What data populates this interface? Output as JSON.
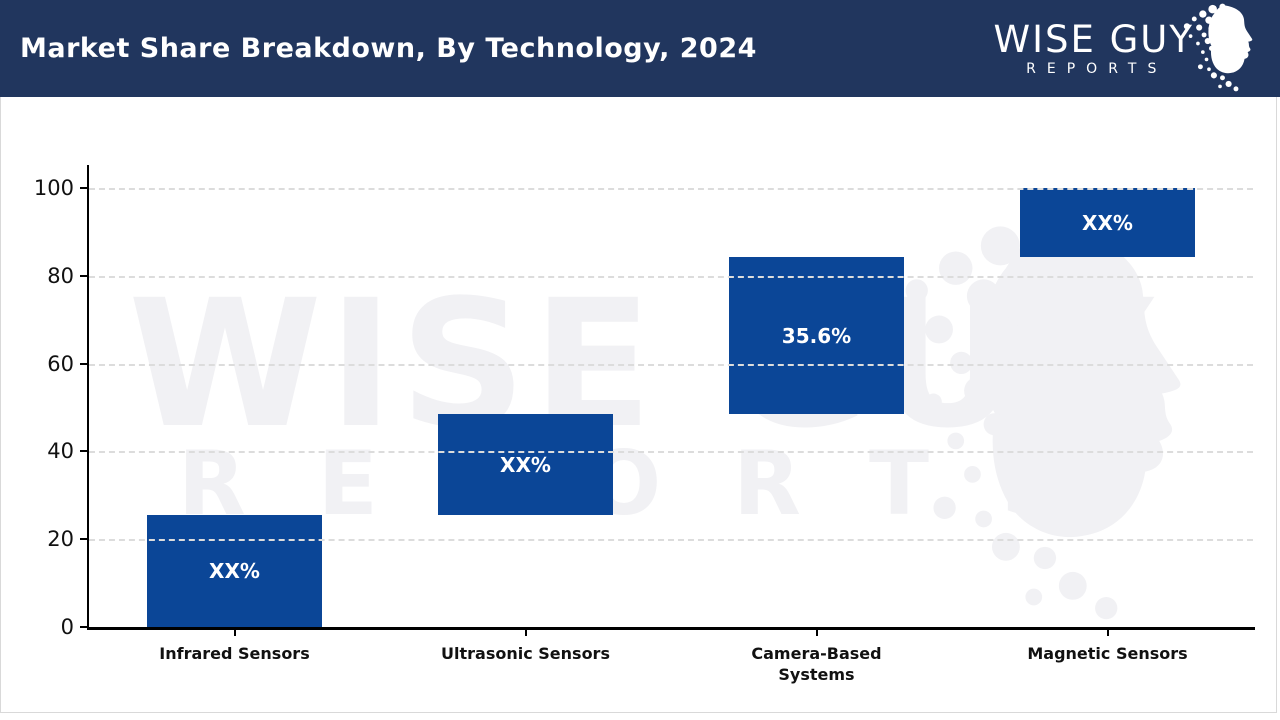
{
  "header": {
    "title": "Market Share Breakdown, By Technology, 2024",
    "bg_color": "#21365e",
    "logo": {
      "line1": "WISE GUY",
      "line2": "REPORTS"
    }
  },
  "watermark": {
    "line1": "WISE GUY",
    "line2": "REPORTS"
  },
  "chart_data": {
    "type": "bar",
    "subtype": "waterfall-floating-bars",
    "title": "Market Share Breakdown, By Technology, 2024",
    "categories": [
      "Infrared Sensors",
      "Ultrasonic Sensors",
      "Camera-Based\nSystems",
      "Magnetic Sensors"
    ],
    "segments": [
      {
        "category": "Infrared Sensors",
        "start": 0,
        "end": 25.4,
        "value": 25.4,
        "label": "XX%"
      },
      {
        "category": "Ultrasonic Sensors",
        "start": 25.4,
        "end": 48.6,
        "value": 23.2,
        "label": "XX%"
      },
      {
        "category": "Camera-Based Systems",
        "start": 48.6,
        "end": 84.2,
        "value": 35.6,
        "label": "35.6%"
      },
      {
        "category": "Magnetic Sensors",
        "start": 84.2,
        "end": 100,
        "value": 15.8,
        "label": "XX%"
      }
    ],
    "y_ticks": [
      0,
      20,
      40,
      60,
      80,
      100
    ],
    "ylim": [
      0,
      100
    ],
    "xlabel": "",
    "ylabel": "",
    "grid": true,
    "grid_style": "dashed",
    "grid_above_bars": true,
    "legend": false,
    "bar_color": "#0b4697",
    "bar_label_color": "#ffffff",
    "axis_color": "#000000",
    "tick_label_color": "#111111"
  }
}
